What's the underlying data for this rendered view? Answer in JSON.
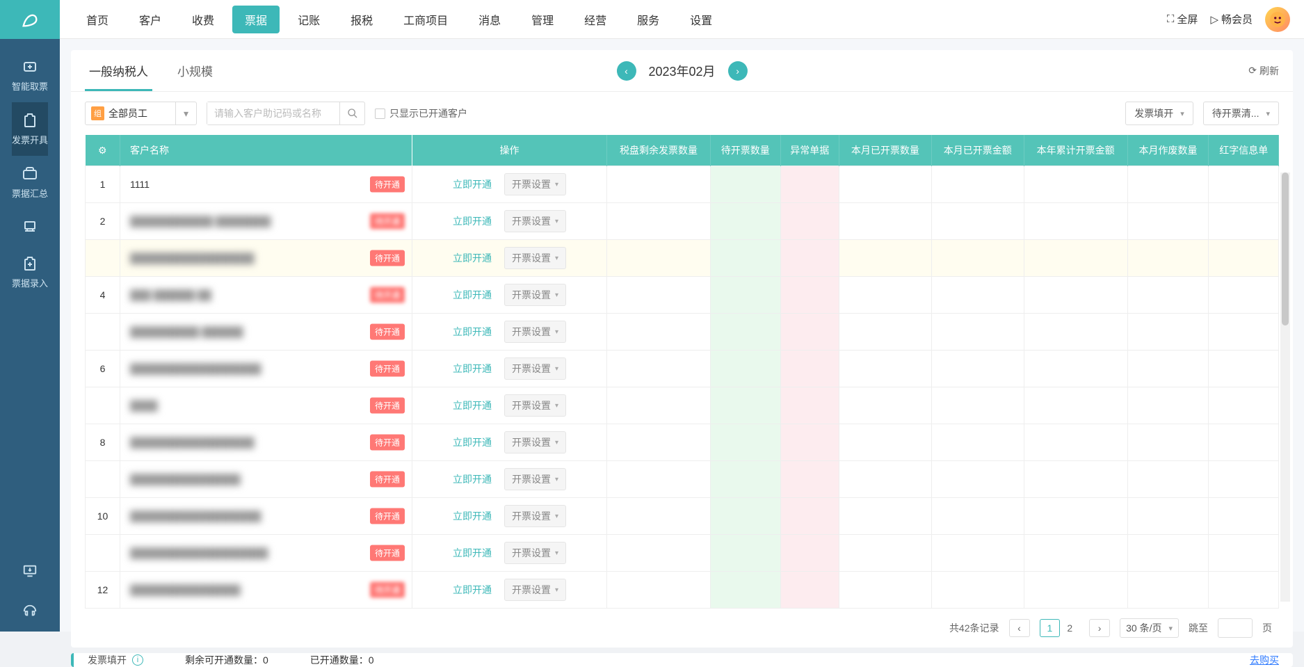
{
  "nav": {
    "items": [
      "首页",
      "客户",
      "收费",
      "票据",
      "记账",
      "报税",
      "工商项目",
      "消息",
      "管理",
      "经营",
      "服务",
      "设置"
    ],
    "active": 3,
    "fullscreen": "全屏",
    "member": "畅会员"
  },
  "sidebar": {
    "items": [
      {
        "label": "智能取票"
      },
      {
        "label": "发票开具"
      },
      {
        "label": "票据汇总"
      },
      {
        "label": ""
      },
      {
        "label": "票据录入"
      }
    ],
    "active": 1
  },
  "tabs": {
    "items": [
      "一般纳税人",
      "小规模"
    ],
    "active": 0
  },
  "date": {
    "label": "2023年02月"
  },
  "refresh": "刷新",
  "filter": {
    "empTag": "组",
    "empText": "全部员工",
    "searchPlaceholder": "请输入客户助记码或名称",
    "onlyOpened": "只显示已开通客户",
    "leftSelect": "发票填开",
    "rightSelect": "待开票清..."
  },
  "table": {
    "headers": [
      "",
      "客户名称",
      "操作",
      "税盘剩余发票数量",
      "待开票数量",
      "异常单据",
      "本月已开票数量",
      "本月已开票金额",
      "本年累计开票金额",
      "本月作废数量",
      "红字信息单"
    ],
    "gearIcon": "⚙",
    "badge": "待开通",
    "linkText": "立即开通",
    "opBtnText": "开票设置",
    "rows": [
      {
        "idx": "1",
        "name": "1111",
        "blur": false,
        "highlight": false,
        "badgeBlur": false
      },
      {
        "idx": "2",
        "name": "████████████ ████████",
        "blur": true,
        "highlight": false,
        "badgeBlur": true
      },
      {
        "idx": "",
        "name": "██████████████████",
        "blur": true,
        "highlight": true,
        "badgeBlur": false
      },
      {
        "idx": "4",
        "name": "███ ██████ ██",
        "blur": true,
        "highlight": false,
        "badgeBlur": true
      },
      {
        "idx": "",
        "name": "██████████ ██████",
        "blur": true,
        "highlight": false,
        "badgeBlur": false
      },
      {
        "idx": "6",
        "name": "███████████████████",
        "blur": true,
        "highlight": false,
        "badgeBlur": false
      },
      {
        "idx": "",
        "name": "████",
        "blur": true,
        "highlight": false,
        "badgeBlur": false
      },
      {
        "idx": "8",
        "name": "██████████████████",
        "blur": true,
        "highlight": false,
        "badgeBlur": false
      },
      {
        "idx": "",
        "name": "████████████████",
        "blur": true,
        "highlight": false,
        "badgeBlur": false
      },
      {
        "idx": "10",
        "name": "███████████████████",
        "blur": true,
        "highlight": false,
        "badgeBlur": false
      },
      {
        "idx": "",
        "name": "████████████████████",
        "blur": true,
        "highlight": false,
        "badgeBlur": false
      },
      {
        "idx": "12",
        "name": "████████████████",
        "blur": true,
        "highlight": false,
        "badgeBlur": true
      }
    ]
  },
  "pagination": {
    "total": "共42条记录",
    "pages": [
      "1",
      "2"
    ],
    "active": 0,
    "perPage": "30 条/页",
    "jumpLabel": "跳至",
    "pageSuffix": "页"
  },
  "footer": {
    "title": "发票填开",
    "remain": "剩余可开通数量：0",
    "opened": "已开通数量：0",
    "buy": "去购买"
  }
}
